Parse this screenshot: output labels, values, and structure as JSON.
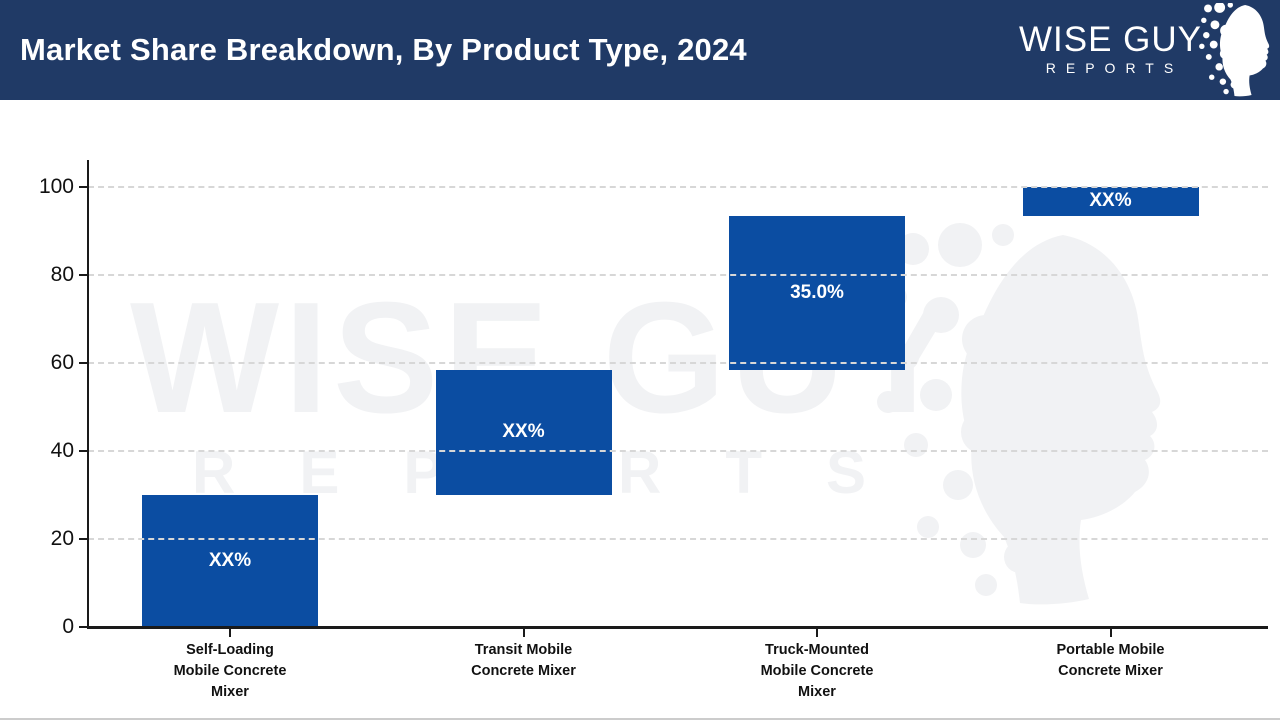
{
  "header": {
    "title": "Market Share Breakdown, By Product Type, 2024",
    "logo": {
      "name": "WISE GUY",
      "tagline": "REPORTS"
    }
  },
  "watermark": {
    "name": "WISE GUY",
    "tagline": "REPORTS"
  },
  "chart_data": {
    "type": "bar",
    "subtype": "floating-waterfall",
    "title": "Market Share Breakdown, By Product Type, 2024",
    "categories": [
      "Self-Loading Mobile Concrete Mixer",
      "Transit Mobile Concrete Mixer",
      "Truck-Mounted Mobile Concrete Mixer",
      "Portable Mobile Concrete Mixer"
    ],
    "category_lines": [
      [
        "Self-Loading",
        "Mobile Concrete",
        "Mixer"
      ],
      [
        "Transit Mobile",
        "Concrete Mixer"
      ],
      [
        "Truck-Mounted",
        "Mobile Concrete",
        "Mixer"
      ],
      [
        "Portable Mobile",
        "Concrete Mixer"
      ]
    ],
    "segments": [
      {
        "category": "Self-Loading Mobile Concrete Mixer",
        "start": 0,
        "end": 30,
        "label": "XX%"
      },
      {
        "category": "Transit Mobile Concrete Mixer",
        "start": 30,
        "end": 58.5,
        "label": "XX%"
      },
      {
        "category": "Truck-Mounted Mobile Concrete Mixer",
        "start": 58.5,
        "end": 93.5,
        "label": "35.0%"
      },
      {
        "category": "Portable Mobile Concrete Mixer",
        "start": 93.5,
        "end": 100,
        "label": "XX%"
      }
    ],
    "yticks": [
      0,
      20,
      40,
      60,
      80,
      100
    ],
    "ylim": [
      0,
      100
    ],
    "xlabel": "",
    "ylabel": "",
    "grid": "horizontal-dashed",
    "legend": "none",
    "bar_color": "#0b4da2",
    "bar_label_color": "#ffffff"
  },
  "colors": {
    "header_bg": "#203a66",
    "bar": "#0b4da2",
    "axis": "#1a1a1a",
    "gridline": "#d7d7d7",
    "watermark": "#f1f2f4",
    "page_bg": "#ffffff"
  }
}
